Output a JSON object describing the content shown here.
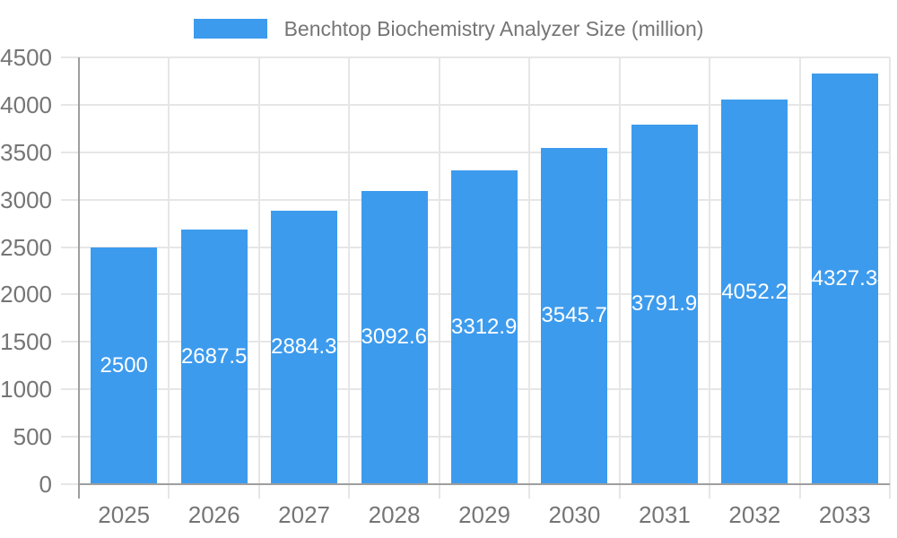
{
  "legend": {
    "series_label": "Benchtop Biochemistry Analyzer Size (million)"
  },
  "chart_data": {
    "type": "bar",
    "title": "Benchtop Biochemistry Analyzer Size (million)",
    "categories": [
      "2025",
      "2026",
      "2027",
      "2028",
      "2029",
      "2030",
      "2031",
      "2032",
      "2033"
    ],
    "series": [
      {
        "name": "Benchtop Biochemistry Analyzer Size (million)",
        "values": [
          2500,
          2687.5,
          2884.38,
          3092.67,
          3312.91,
          3545.78,
          3791.97,
          4052.22,
          4327.34
        ]
      }
    ],
    "bar_value_labels": [
      "2500",
      "2687.5",
      "2884.38",
      "3092.67",
      "3312.91",
      "3545.78",
      "3791.97",
      "4052.22",
      "4327.34"
    ],
    "xlabel": "",
    "ylabel": "",
    "ylim": [
      0,
      4500
    ],
    "ytick_step": 500,
    "ytick_labels": [
      "0",
      "500",
      "1000",
      "1500",
      "2000",
      "2500",
      "3000",
      "3500",
      "4000",
      "4500"
    ],
    "grid": true,
    "legend_position": "top",
    "colors": {
      "bar": "#3D9BED",
      "bar_label": "#FFFFFF",
      "axis_text": "#757575",
      "axis_line": "#9E9E9E",
      "gridline": "#E6E6E6"
    }
  }
}
